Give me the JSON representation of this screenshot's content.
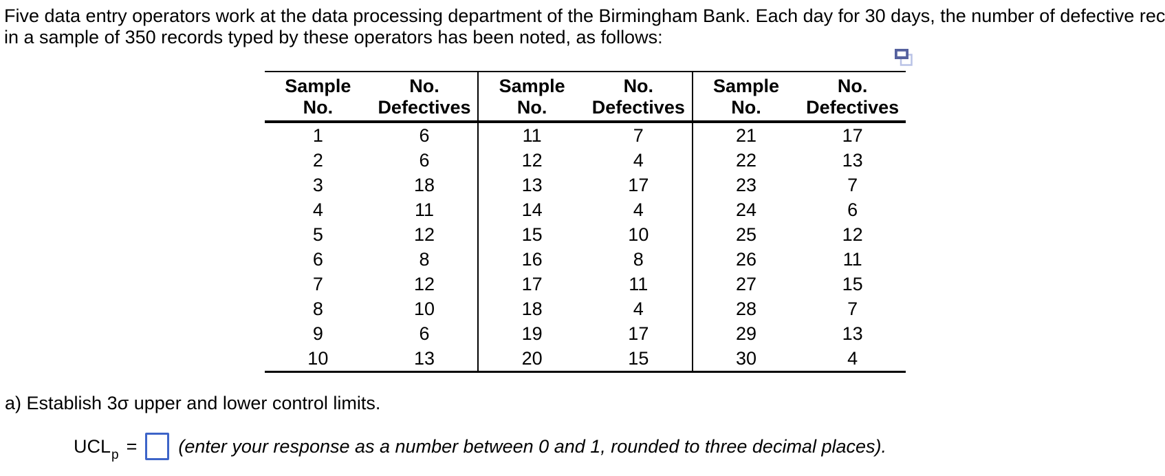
{
  "problem": {
    "statement_line1": "Five data entry operators work at the data processing department of the Birmingham Bank. Each day for 30 days, the number of defective records",
    "statement_line2": "in a sample of 350 records typed by these operators has been noted, as follows:"
  },
  "colors": {
    "text": "#000000",
    "answer_box_border": "#3d64c8",
    "icon_dark_blue": "#55619e",
    "icon_light_blue": "#b9c2e6"
  },
  "icons": {
    "duplicate_window": "duplicate-window-icon"
  },
  "table": {
    "column_headers": {
      "sample_top": "Sample",
      "sample_bottom": "No.",
      "defectives_top": "No.",
      "defectives_bottom": "Defectives"
    },
    "groups": [
      {
        "rows": [
          {
            "sample_no": "1",
            "defectives": "6"
          },
          {
            "sample_no": "2",
            "defectives": "6"
          },
          {
            "sample_no": "3",
            "defectives": "18"
          },
          {
            "sample_no": "4",
            "defectives": "11"
          },
          {
            "sample_no": "5",
            "defectives": "12"
          },
          {
            "sample_no": "6",
            "defectives": "8"
          },
          {
            "sample_no": "7",
            "defectives": "12"
          },
          {
            "sample_no": "8",
            "defectives": "10"
          },
          {
            "sample_no": "9",
            "defectives": "6"
          },
          {
            "sample_no": "10",
            "defectives": "13"
          }
        ]
      },
      {
        "rows": [
          {
            "sample_no": "11",
            "defectives": "7"
          },
          {
            "sample_no": "12",
            "defectives": "4"
          },
          {
            "sample_no": "13",
            "defectives": "17"
          },
          {
            "sample_no": "14",
            "defectives": "4"
          },
          {
            "sample_no": "15",
            "defectives": "10"
          },
          {
            "sample_no": "16",
            "defectives": "8"
          },
          {
            "sample_no": "17",
            "defectives": "11"
          },
          {
            "sample_no": "18",
            "defectives": "4"
          },
          {
            "sample_no": "19",
            "defectives": "17"
          },
          {
            "sample_no": "20",
            "defectives": "15"
          }
        ]
      },
      {
        "rows": [
          {
            "sample_no": "21",
            "defectives": "17"
          },
          {
            "sample_no": "22",
            "defectives": "13"
          },
          {
            "sample_no": "23",
            "defectives": "7"
          },
          {
            "sample_no": "24",
            "defectives": "6"
          },
          {
            "sample_no": "25",
            "defectives": "12"
          },
          {
            "sample_no": "26",
            "defectives": "11"
          },
          {
            "sample_no": "27",
            "defectives": "15"
          },
          {
            "sample_no": "28",
            "defectives": "7"
          },
          {
            "sample_no": "29",
            "defectives": "13"
          },
          {
            "sample_no": "30",
            "defectives": "4"
          }
        ]
      }
    ]
  },
  "question": {
    "part_a_text": "a) Establish 3σ upper and lower control limits.",
    "ucl_base": "UCL",
    "ucl_subscript": "p",
    "equals_sign": "=",
    "answer_input_value": "",
    "answer_hint": "(enter your response as a number between 0 and 1, rounded to three decimal places)."
  }
}
